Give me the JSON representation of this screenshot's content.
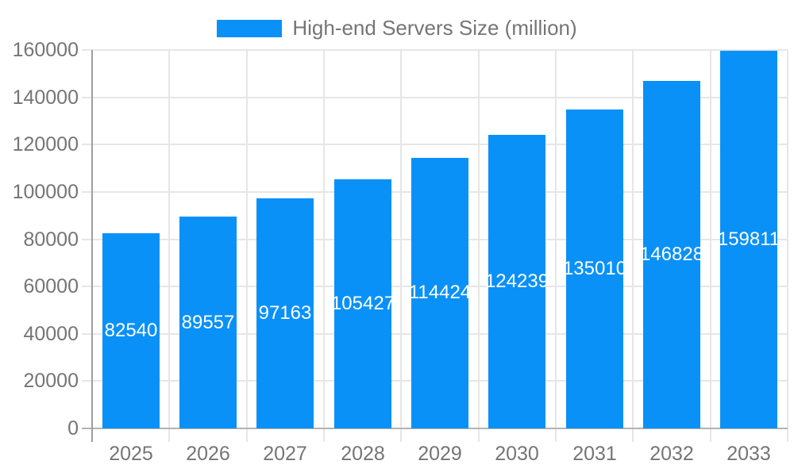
{
  "chart_data": {
    "type": "bar",
    "legend": "High-end Servers Size (million)",
    "legend_position": "top",
    "categories": [
      "2025",
      "2026",
      "2027",
      "2028",
      "2029",
      "2030",
      "2031",
      "2032",
      "2033"
    ],
    "series": [
      {
        "name": "High-end Servers Size (million)",
        "values": [
          82540,
          89557,
          97163,
          105427,
          114424,
          124239,
          135010,
          146828,
          159811
        ],
        "color": "#0a91f8"
      }
    ],
    "value_labels": "inside-center",
    "value_label_color": "#ffffff",
    "xlabel": "",
    "ylabel": "",
    "ylim": [
      0,
      160000
    ],
    "ytick_interval": 20000,
    "yticks": [
      "0",
      "20000",
      "40000",
      "60000",
      "80000",
      "100000",
      "120000",
      "140000",
      "160000"
    ],
    "grid": true,
    "grid_color": "#e6e6e6",
    "axis_text_color": "#757575",
    "x_axis_line_color": "#b3b3b3",
    "y_axis_line_color": "#9e9e9e"
  }
}
